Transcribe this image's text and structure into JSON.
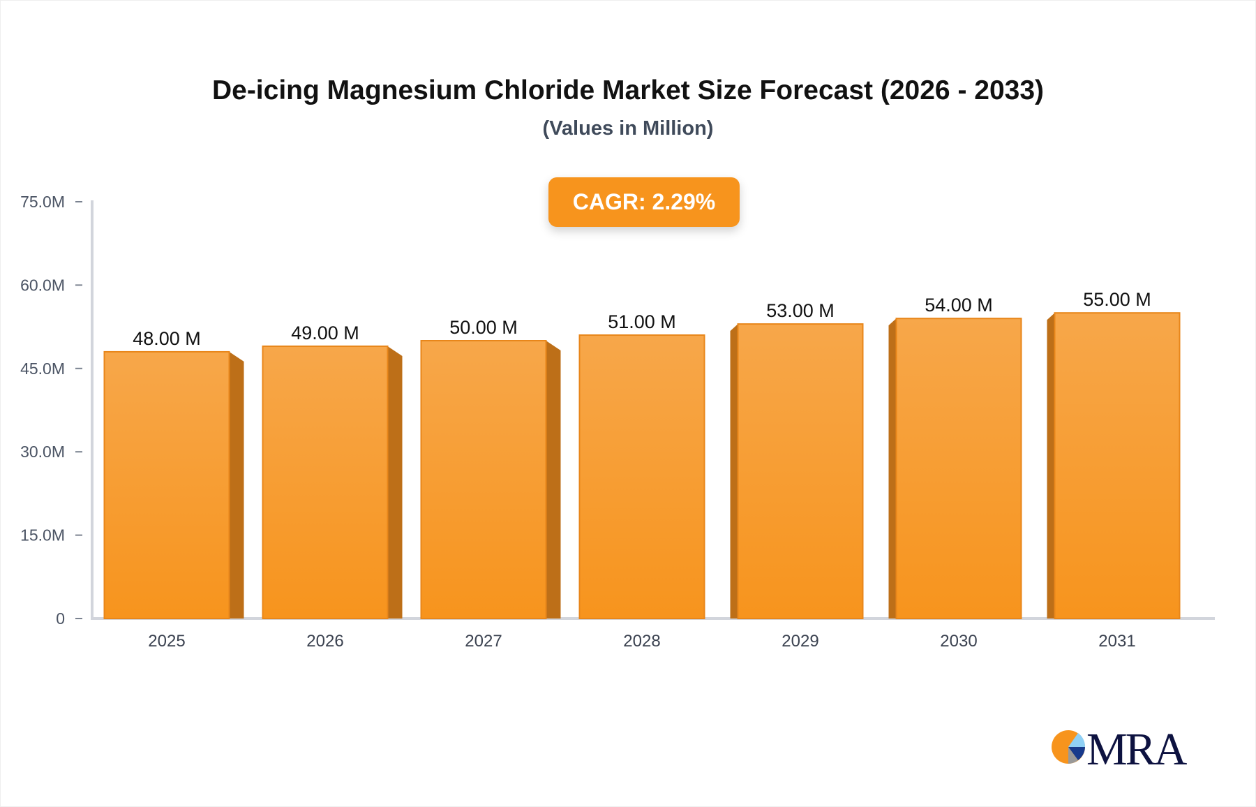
{
  "chart_data": {
    "type": "bar",
    "title": "De-icing Magnesium Chloride Market Size Forecast (2026 - 2033)",
    "subtitle": "(Values in Million)",
    "categories": [
      "2025",
      "2026",
      "2027",
      "2028",
      "2029",
      "2030",
      "2031"
    ],
    "values": [
      48,
      49,
      50,
      51,
      53,
      54,
      55
    ],
    "data_labels": [
      "48.00 M",
      "49.00 M",
      "50.00 M",
      "51.00 M",
      "53.00 M",
      "54.00 M",
      "55.00 M"
    ],
    "ylim": [
      0,
      75
    ],
    "yticks": [
      0,
      15,
      30,
      45,
      60,
      75
    ],
    "ytick_labels": [
      "0",
      "15.0M",
      "30.0M",
      "45.0M",
      "60.0M",
      "75.0M"
    ],
    "xlabel": "",
    "ylabel": "",
    "grid": false,
    "bar_color": "#f7941d",
    "annotation": "CAGR: 2.29%"
  },
  "logo": {
    "text": "MRA"
  }
}
